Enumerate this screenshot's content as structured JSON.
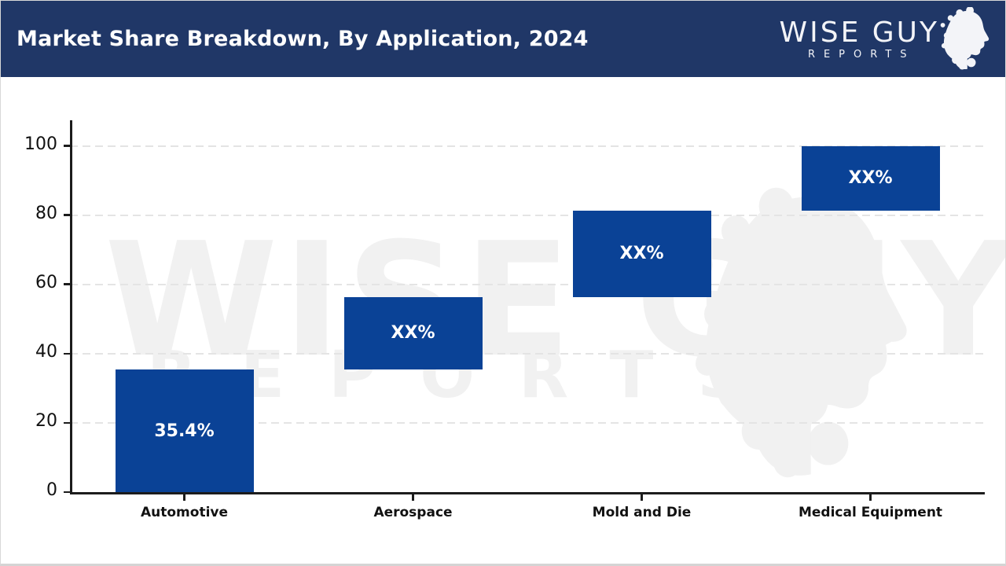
{
  "header": {
    "title": "Market Share Breakdown, By Application, 2024",
    "logo": {
      "brand": "WISE GUY",
      "sub": "REPORTS"
    }
  },
  "watermark": {
    "brand": "WISE GUY",
    "sub": "REPORTS"
  },
  "colors": {
    "header_bg": "#203767",
    "header_text": "#ffffff",
    "logo_text": "#f3f4f8",
    "bar_fill": "#0a4296",
    "bar_label": "#ffffff",
    "axis": "#1c1c1c",
    "tick_label": "#111111",
    "gridline": "#e4e4e4",
    "watermark": "#f1f1f1",
    "page_bg": "#ffffff",
    "border": "#d8d8d8"
  },
  "chart_data": {
    "type": "bar",
    "variant": "floating-waterfall",
    "title": "Market Share Breakdown, By Application, 2024",
    "categories": [
      "Automotive",
      "Aerospace",
      "Mold and Die",
      "Medical Equipment"
    ],
    "series": [
      {
        "name": "Market share (%)",
        "segments": [
          {
            "category": "Automotive",
            "start": 0,
            "end": 35.4,
            "label": "35.4%"
          },
          {
            "category": "Aerospace",
            "start": 35.4,
            "end": 56.4,
            "label": "XX%"
          },
          {
            "category": "Mold and Die",
            "start": 56.4,
            "end": 81.3,
            "label": "XX%"
          },
          {
            "category": "Medical Equipment",
            "start": 81.3,
            "end": 100,
            "label": "XX%"
          }
        ]
      }
    ],
    "xlabel": "",
    "ylabel": "",
    "yticks": [
      0,
      20,
      40,
      60,
      80,
      100
    ],
    "ylim": [
      0,
      107
    ],
    "grid": "horizontal-dashed",
    "legend": "none"
  }
}
